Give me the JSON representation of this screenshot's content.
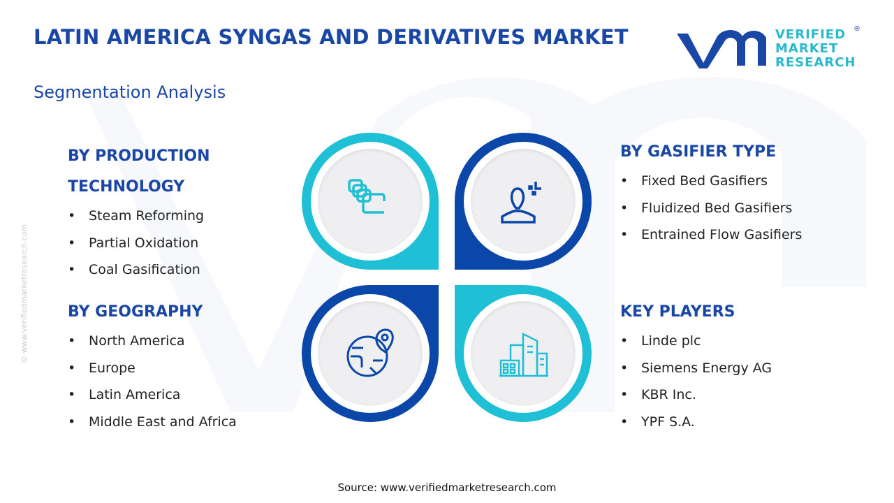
{
  "header": {
    "title": "LATIN AMERICA SYNGAS AND DERIVATIVES MARKET",
    "subtitle": "Segmentation Analysis"
  },
  "logo": {
    "line1": "VERIFIED",
    "line2": "MARKET",
    "line3": "RESEARCH",
    "registered": "®"
  },
  "watermark": "© www.verifiedmarketresearch.com",
  "colors": {
    "dark_blue": "#0b47a8",
    "cyan": "#1fbfd6",
    "title": "#1a47a6"
  },
  "segments": [
    {
      "title": "BY PRODUCTION TECHNOLOGY",
      "items": [
        "Steam Reforming",
        "Partial Oxidation",
        "Coal Gasification"
      ],
      "icon": "layers-icon"
    },
    {
      "title": "BY GASIFIER TYPE",
      "items": [
        "Fixed Bed Gasifiers",
        "Fluidized Bed Gasifiers",
        "Entrained Flow Gasifiers"
      ],
      "icon": "user-icon"
    },
    {
      "title": "BY GEOGRAPHY",
      "items": [
        "North America",
        "Europe",
        "Latin America",
        "Middle East and Africa"
      ],
      "icon": "globe-pin-icon"
    },
    {
      "title": "KEY PLAYERS",
      "items": [
        "Linde plc",
        "Siemens Energy AG",
        "KBR Inc.",
        "YPF S.A."
      ],
      "icon": "buildings-icon"
    }
  ],
  "source": "Source: www.verifiedmarketresearch.com"
}
